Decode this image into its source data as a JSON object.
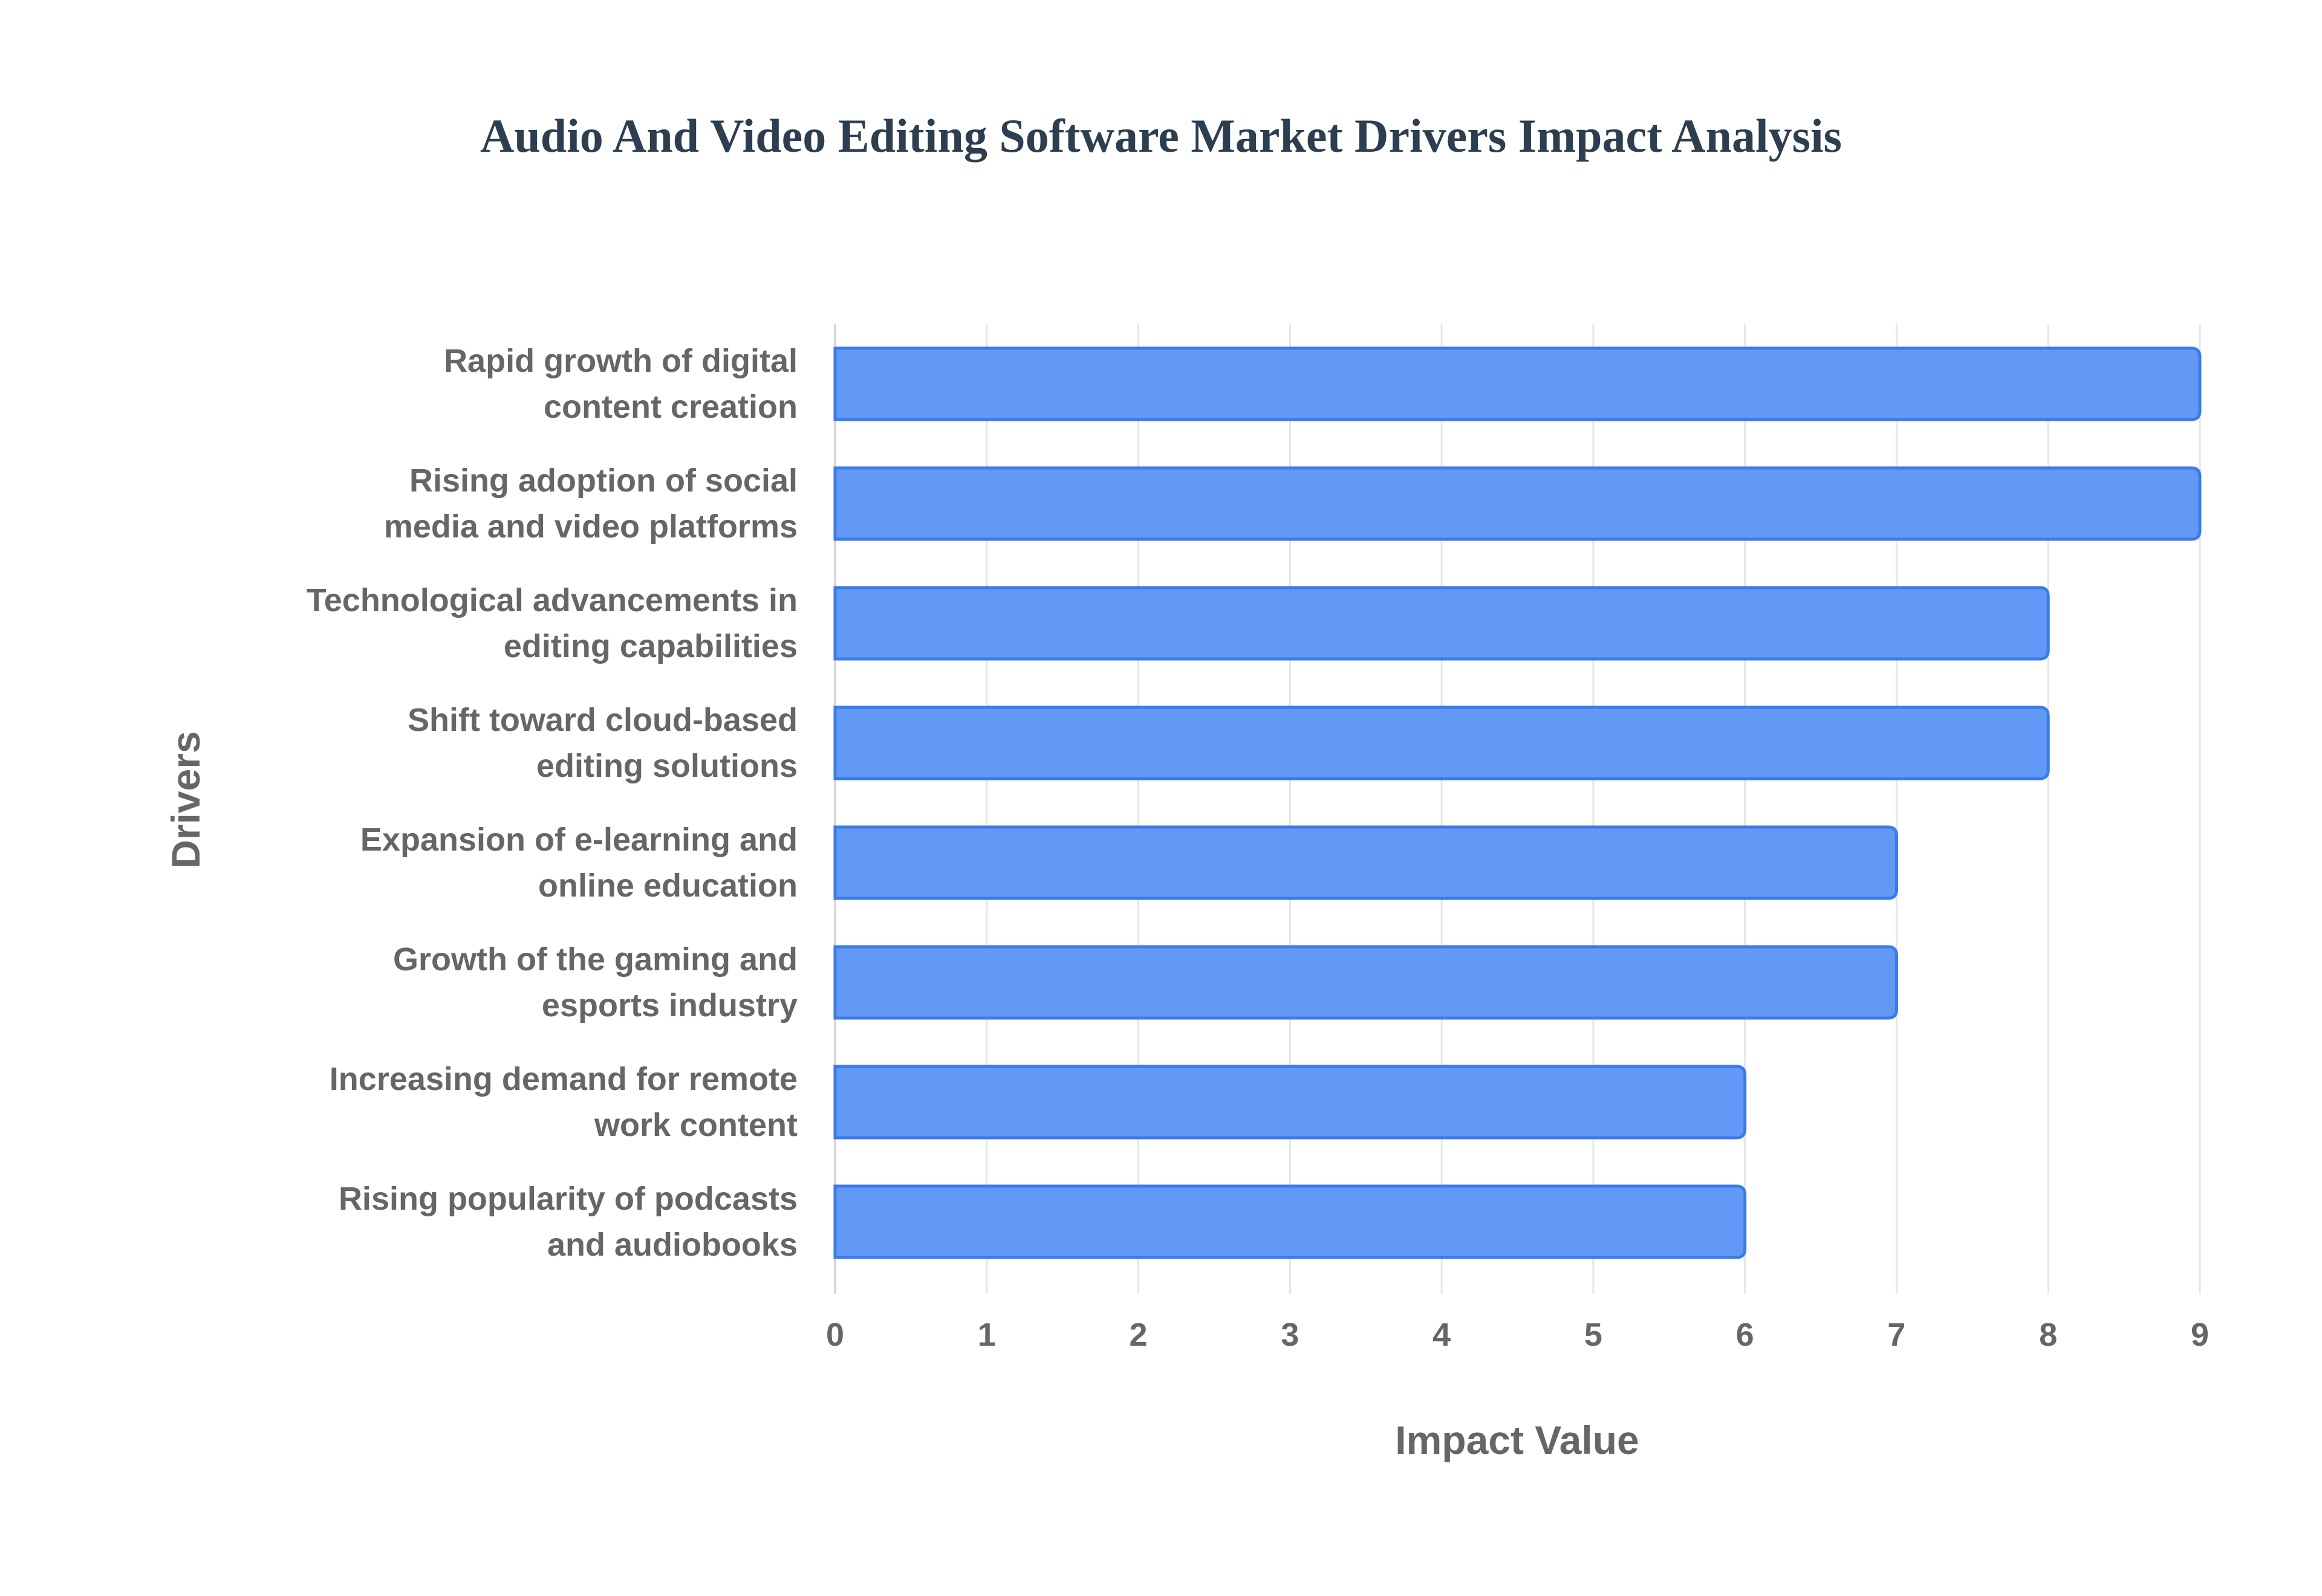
{
  "chart_data": {
    "type": "bar",
    "orientation": "horizontal",
    "title": "Audio And Video Editing Software Market Drivers Impact Analysis",
    "xlabel": "Impact Value",
    "ylabel": "Drivers",
    "categories": [
      [
        "Rapid growth of digital",
        "content creation"
      ],
      [
        "Rising adoption of social",
        "media and video platforms"
      ],
      [
        "Technological advancements in",
        "editing capabilities"
      ],
      [
        "Shift toward cloud-based",
        "editing solutions"
      ],
      [
        "Expansion of e-learning and",
        "online education"
      ],
      [
        "Growth of the gaming and",
        "esports industry"
      ],
      [
        "Increasing demand for remote",
        "work content"
      ],
      [
        "Rising popularity of podcasts",
        "and audiobooks"
      ]
    ],
    "values": [
      9,
      9,
      8,
      8,
      7,
      7,
      6,
      6
    ],
    "xlim": [
      0,
      9
    ],
    "xticks": [
      "0",
      "1",
      "2",
      "3",
      "4",
      "5",
      "6",
      "7",
      "8",
      "9"
    ],
    "grid": true,
    "colors": {
      "bar_fill": "#6399f6",
      "bar_border": "#3b7be9",
      "grid": "#e6e6e6",
      "text": "#666666",
      "title": "#2c3e50"
    }
  }
}
